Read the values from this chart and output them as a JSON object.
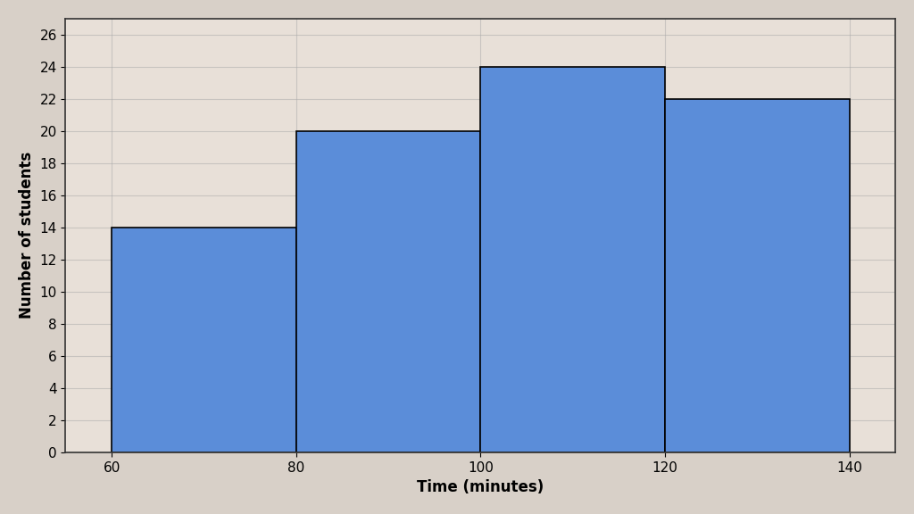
{
  "bin_edges": [
    60,
    80,
    100,
    120,
    140
  ],
  "frequencies": [
    14,
    20,
    24,
    22
  ],
  "bar_color": "#5B8DD9",
  "bar_edgecolor": "#000000",
  "title": "",
  "xlabel": "Time (minutes)",
  "ylabel": "Number of students",
  "xlim": [
    55,
    145
  ],
  "ylim": [
    0,
    27
  ],
  "xticks": [
    60,
    80,
    100,
    120,
    140
  ],
  "yticks": [
    0,
    2,
    4,
    6,
    8,
    10,
    12,
    14,
    16,
    18,
    20,
    22,
    24,
    26
  ],
  "title_fontsize": 13,
  "label_fontsize": 12,
  "tick_fontsize": 11,
  "background_color": "#d8d0c8",
  "axes_bg": "#e8e0d8",
  "grid": true,
  "grid_color": "#aaaaaa"
}
